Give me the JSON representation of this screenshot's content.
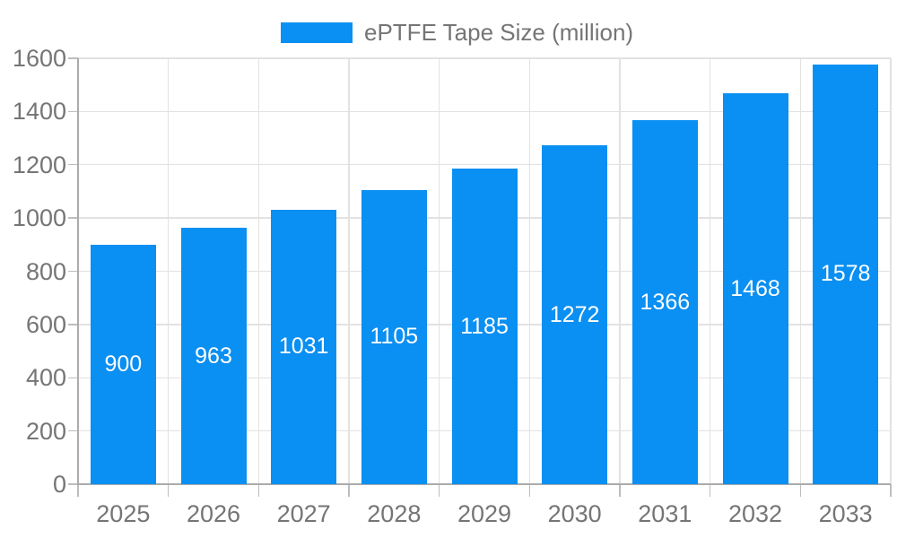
{
  "chart_data": {
    "type": "bar",
    "title": "",
    "legend": [
      "ePTFE Tape Size (million)"
    ],
    "legend_position": "top-center",
    "categories": [
      "2025",
      "2026",
      "2027",
      "2028",
      "2029",
      "2030",
      "2031",
      "2032",
      "2033"
    ],
    "values": [
      900,
      963,
      1031,
      1105,
      1185,
      1272,
      1366,
      1468,
      1578
    ],
    "xlabel": "",
    "ylabel": "",
    "ylim": [
      0,
      1600
    ],
    "ytick_step": 200,
    "ytick_labels": [
      "0",
      "200",
      "400",
      "600",
      "800",
      "1000",
      "1200",
      "1400",
      "1600"
    ],
    "grid": true,
    "value_label_position": "inside-center",
    "colors": {
      "bar": "#0a8ff2",
      "value_label": "#ffffff",
      "axis_label": "#757575",
      "axis_line": "#ababab",
      "gridline": "#e2e2e2",
      "tick": "#bdbdbd",
      "background": "#ffffff"
    }
  }
}
